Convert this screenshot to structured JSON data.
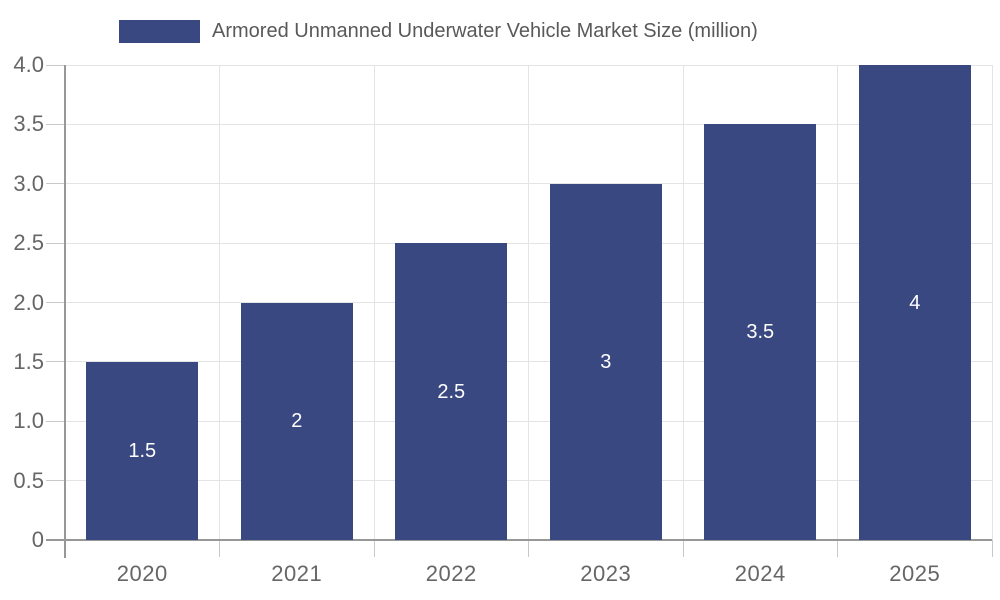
{
  "legend": {
    "label": "Armored Unmanned Underwater Vehicle Market Size (million)"
  },
  "chart_data": {
    "type": "bar",
    "title": "",
    "xlabel": "",
    "ylabel": "",
    "categories": [
      "2020",
      "2021",
      "2022",
      "2023",
      "2024",
      "2025"
    ],
    "series": [
      {
        "name": "Armored Unmanned Underwater Vehicle Market Size (million)",
        "values": [
          1.5,
          2,
          2.5,
          3,
          3.5,
          4
        ],
        "data_labels": [
          "1.5",
          "2",
          "2.5",
          "3",
          "3.5",
          "4"
        ]
      }
    ],
    "ylim": [
      0,
      4
    ],
    "ytick_step": 0.5,
    "ytick_labels": [
      "0",
      "0.5",
      "1.0",
      "1.5",
      "2.0",
      "2.5",
      "3.0",
      "3.5",
      "4.0"
    ],
    "grid": true,
    "legend_position": "top-left",
    "colors": {
      "bar": "#394881",
      "grid": "#e4e4e4",
      "tick": "#c9c9c9",
      "axis": "#979797",
      "axis_text": "#666666",
      "bar_label_text": "#ffffff",
      "legend_text": "#595959"
    }
  }
}
